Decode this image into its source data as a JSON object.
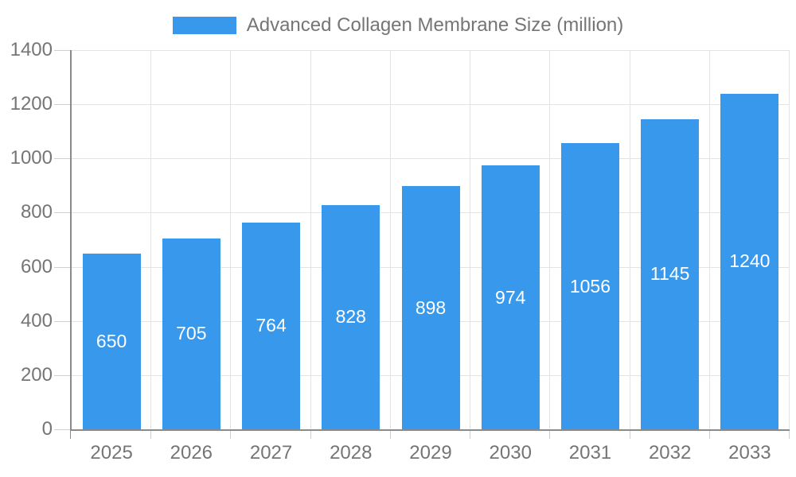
{
  "chart_data": {
    "type": "bar",
    "title": "Advanced Collagen Membrane Size (million)",
    "legend": {
      "entries": [
        "Advanced Collagen Membrane Size (million)"
      ],
      "position": "top"
    },
    "categories": [
      "2025",
      "2026",
      "2027",
      "2028",
      "2029",
      "2030",
      "2031",
      "2032",
      "2033"
    ],
    "series": [
      {
        "name": "Advanced Collagen Membrane Size (million)",
        "values": [
          650,
          705,
          764,
          828,
          898,
          974,
          1056,
          1145,
          1240
        ]
      }
    ],
    "data_labels": [
      "650",
      "705",
      "764",
      "828",
      "898",
      "974",
      "1056",
      "1145",
      "1240"
    ],
    "xlabel": "",
    "ylabel": "",
    "ylim": [
      0,
      1400
    ],
    "yticks": [
      0,
      200,
      400,
      600,
      800,
      1000,
      1200,
      1400
    ],
    "grid": true,
    "colors": {
      "bar": "#3899ec",
      "bar_label": "#ffffff",
      "axis_text": "#757575",
      "axis_line": "#8a8a8a",
      "gridline": "#e3e3e3",
      "tick": "#cfcfcf",
      "background": "#ffffff"
    }
  }
}
